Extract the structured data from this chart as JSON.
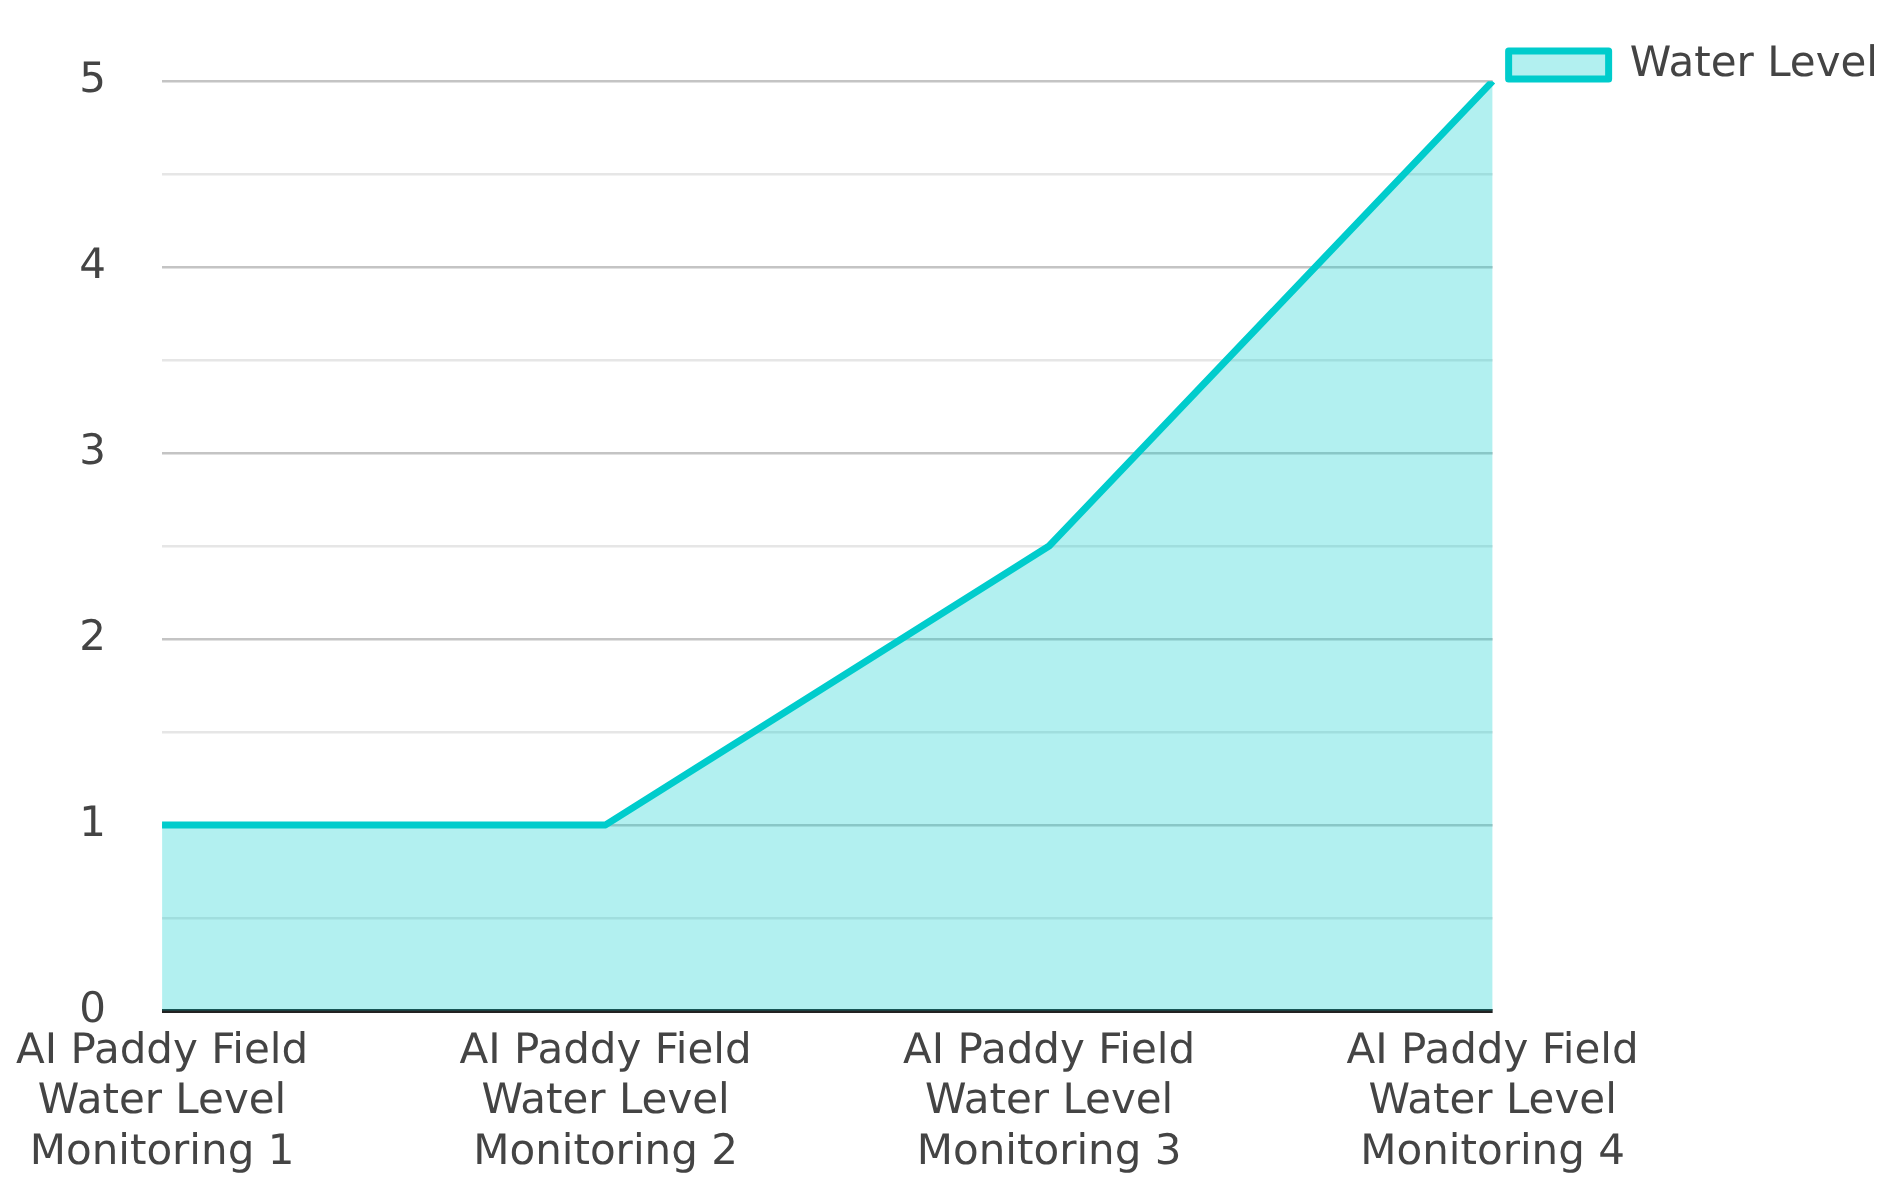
{
  "chart_data": {
    "type": "area",
    "categories": [
      "AI Paddy Field Water Level Monitoring 1",
      "AI Paddy Field Water Level Monitoring 2",
      "AI Paddy Field Water Level Monitoring 3",
      "AI Paddy Field Water Level Monitoring 4"
    ],
    "series": [
      {
        "name": "Water Level",
        "color": "#00cccc",
        "values": [
          1,
          1,
          2.5,
          5
        ]
      }
    ],
    "ylim": [
      0,
      5
    ],
    "yticks": [
      0,
      {
        "value": 0.5,
        "label": null
      },
      1,
      {
        "value": 1.5,
        "label": null
      },
      2,
      {
        "value": 2.5,
        "label": null
      },
      3,
      {
        "value": 3.5,
        "label": null
      },
      4,
      {
        "value": 4.5,
        "label": null
      },
      5
    ],
    "grid": "y",
    "legend": "top right",
    "marker": "none",
    "line_style": "solid"
  }
}
